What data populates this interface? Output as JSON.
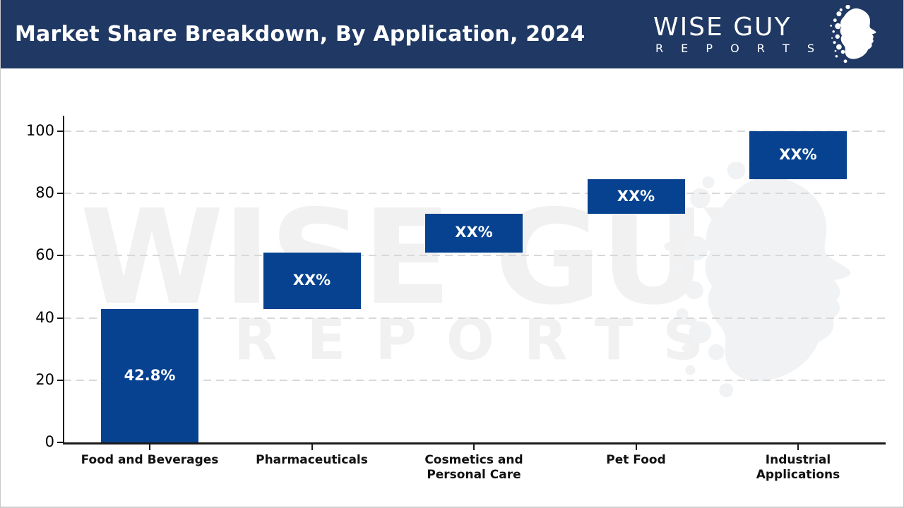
{
  "header": {
    "title": "Market Share Breakdown, By Application, 2024",
    "bg_color": "#1f3864",
    "logo": {
      "line1": "WISE GUY",
      "line2": "R E P O R T S"
    }
  },
  "watermark": {
    "line1": "WISE GUY",
    "line2": "REPORTS"
  },
  "chart_data": {
    "type": "bar",
    "subtype": "waterfall",
    "title": "Market Share Breakdown, By Application, 2024",
    "xlabel": "",
    "ylabel": "",
    "ylim": [
      0,
      100
    ],
    "y_ticks": [
      0,
      20,
      40,
      60,
      80,
      100
    ],
    "grid": "horizontal-dashed",
    "legend": "none",
    "categories": [
      "Food and Beverages",
      "Pharmaceuticals",
      "Cosmetics and Personal Care",
      "Pet Food",
      "Industrial Applications"
    ],
    "category_lines": [
      [
        "Food and Beverages"
      ],
      [
        "Pharmaceuticals"
      ],
      [
        "Cosmetics and",
        "Personal Care"
      ],
      [
        "Pet Food"
      ],
      [
        "Industrial",
        "Applications"
      ]
    ],
    "segments": [
      {
        "category": "Food and Beverages",
        "start": 0,
        "end": 42.8,
        "label": "42.8%"
      },
      {
        "category": "Pharmaceuticals",
        "start": 42.8,
        "end": 61.0,
        "label": "XX%"
      },
      {
        "category": "Cosmetics and Personal Care",
        "start": 61.0,
        "end": 73.5,
        "label": "XX%"
      },
      {
        "category": "Pet Food",
        "start": 73.5,
        "end": 84.5,
        "label": "XX%"
      },
      {
        "category": "Industrial Applications",
        "start": 84.5,
        "end": 100,
        "label": "XX%"
      }
    ]
  },
  "colors": {
    "bar": "#06428f",
    "header_bg": "#1f3864",
    "grid": "#d8d8d8",
    "axis": "#1a1a1a",
    "bar_label_text": "#ffffff",
    "watermark_text": "#f1f1f1",
    "watermark_face": "#f0f2f4",
    "logo_text": "#ffffff"
  }
}
